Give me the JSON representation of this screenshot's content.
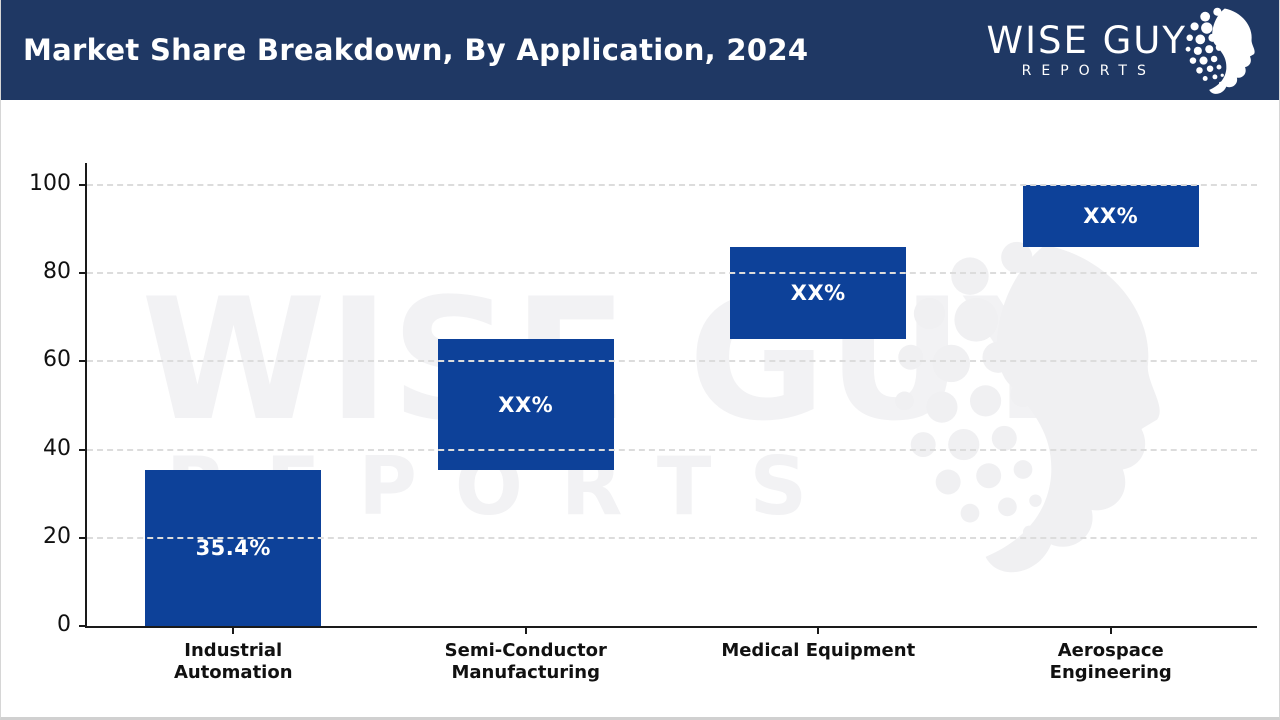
{
  "header": {
    "title": "Market Share Breakdown, By Application, 2024",
    "logo": {
      "brand": "WISE GUY",
      "sub": "REPORTS"
    }
  },
  "watermark": {
    "brand": "WISE GUY",
    "sub": "REPORTS"
  },
  "colors": {
    "header_bg": "#1f3864",
    "bar": "#0d4199",
    "grid": "#dcdcdc",
    "axis": "#1a1a1a",
    "bar_label": "#ffffff"
  },
  "chart_data": {
    "type": "bar",
    "variant": "floating-segment-waterfall",
    "title": "Market Share Breakdown, By Application, 2024",
    "categories": [
      "Industrial Automation",
      "Semi-Conductor Manufacturing",
      "Medical Equipment",
      "Aerospace Engineering"
    ],
    "bars": [
      {
        "category_lines": [
          "Industrial",
          "Automation"
        ],
        "start": 0,
        "end": 35.4,
        "label": "35.4%"
      },
      {
        "category_lines": [
          "Semi-Conductor",
          "Manufacturing"
        ],
        "start": 35.4,
        "end": 65,
        "label": "XX%"
      },
      {
        "category_lines": [
          "Medical Equipment"
        ],
        "start": 65,
        "end": 86,
        "label": "XX%"
      },
      {
        "category_lines": [
          "Aerospace",
          "Engineering"
        ],
        "start": 86,
        "end": 100,
        "label": "XX%"
      }
    ],
    "ylim": [
      0,
      100
    ],
    "yticks": [
      0,
      20,
      40,
      60,
      80,
      100
    ],
    "xlabel": "",
    "ylabel": "",
    "grid": "horizontal-dashed",
    "legend": "none",
    "bar_color": "#0d4199"
  }
}
